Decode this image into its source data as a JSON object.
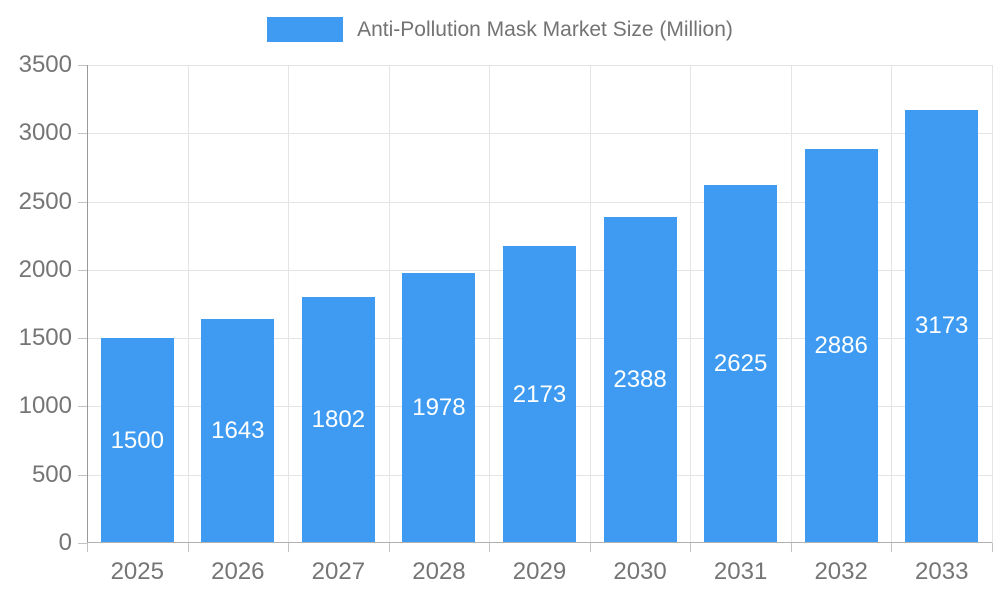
{
  "chart_data": {
    "type": "bar",
    "title": "",
    "legend": {
      "label": "Anti-Pollution Mask Market Size (Million)",
      "position": "top-center"
    },
    "categories": [
      "2025",
      "2026",
      "2027",
      "2028",
      "2029",
      "2030",
      "2031",
      "2032",
      "2033"
    ],
    "series": [
      {
        "name": "Anti-Pollution Mask Market Size (Million)",
        "values": [
          1500,
          1643,
          1802,
          1978,
          2173,
          2388,
          2625,
          2886,
          3173
        ]
      }
    ],
    "xlabel": "",
    "ylabel": "",
    "ylim": [
      0,
      3500
    ],
    "yticks": [
      0,
      500,
      1000,
      1500,
      2000,
      2500,
      3000,
      3500
    ],
    "grid": true,
    "value_labels": "inside-center-white",
    "colors": {
      "bar": "#3E9BF1",
      "bar_value_text": "#ffffff",
      "axis_text": "#757575",
      "legend_text": "#737373",
      "grid_line": "#e4e4e4",
      "y_axis_line": "#999999",
      "x_axis_line": "#b0b0b0",
      "tick": "#c2c2c2",
      "background": "#ffffff"
    }
  }
}
